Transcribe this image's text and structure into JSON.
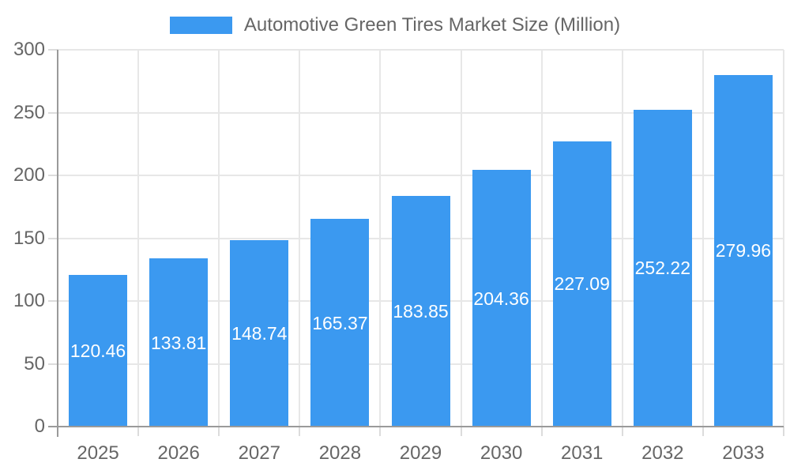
{
  "legend": {
    "position": "top"
  },
  "chart_data": {
    "type": "bar",
    "categories": [
      "2025",
      "2026",
      "2027",
      "2028",
      "2029",
      "2030",
      "2031",
      "2032",
      "2033"
    ],
    "series": [
      {
        "name": "Automotive Green Tires Market Size (Million)",
        "values": [
          120.46,
          133.81,
          148.74,
          165.37,
          183.85,
          204.36,
          227.09,
          252.22,
          279.96
        ]
      }
    ],
    "title": "",
    "xlabel": "",
    "ylabel": "",
    "ylim": [
      0,
      300
    ],
    "yticks": [
      0,
      50,
      100,
      150,
      200,
      250,
      300
    ],
    "grid": true,
    "legend_position": "top",
    "value_label_position": "inside-center",
    "colors": {
      "bar": "#3b99f0",
      "value_label": "#ffffff",
      "axis_line": "#9a9a9a",
      "grid_line": "#e7e7e7",
      "tick_mark": "#dcdcdc",
      "text": "#666666",
      "background": "#ffffff"
    }
  }
}
